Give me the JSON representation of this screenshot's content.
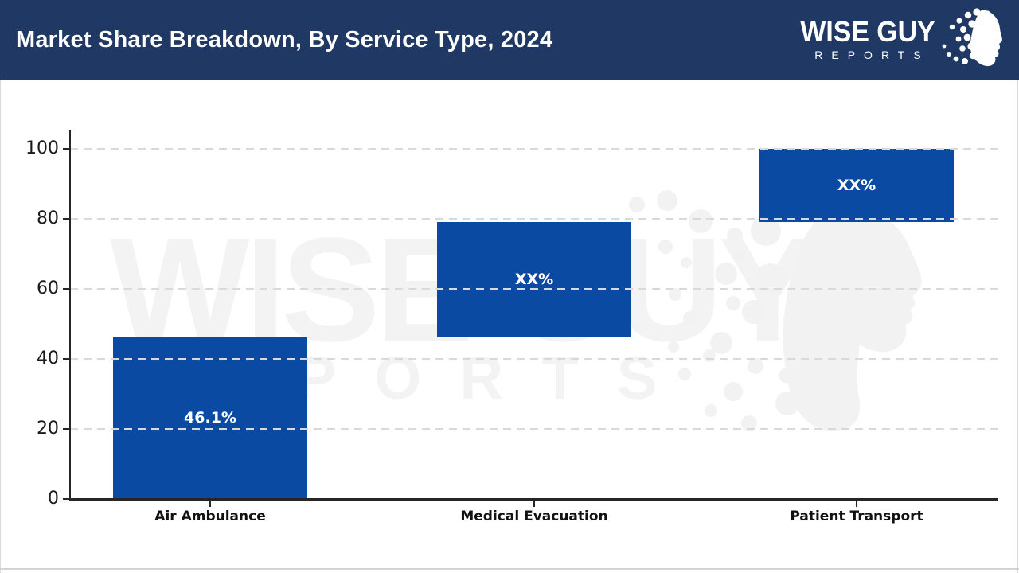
{
  "header": {
    "title": "Market Share Breakdown, By Service Type, 2024",
    "logo": {
      "brand": "WISE GUY",
      "sub": "REPORTS",
      "face_icon": "dotted-head-profile"
    }
  },
  "watermark": {
    "brand": "WISE GUY",
    "sub": "REPORTS",
    "face_icon": "dotted-head-profile"
  },
  "colors": {
    "header_bg": "#1f3864",
    "bar": "#0b4aa2",
    "grid": "#d9d9d9",
    "axis": "#262626",
    "tick_text": "#1a1a1a",
    "bar_label_text": "#ffffff",
    "watermark": "#f3f3f3"
  },
  "chart_data": {
    "type": "bar",
    "subtype": "stepped-waterfall",
    "title": "Market Share Breakdown, By Service Type, 2024",
    "categories": [
      "Air Ambulance",
      "Medical Evacuation",
      "Patient Transport"
    ],
    "segments": [
      {
        "category": "Air Ambulance",
        "start": 0,
        "end": 46.1,
        "label": "46.1%"
      },
      {
        "category": "Medical Evacuation",
        "start": 46.1,
        "end": 79.1,
        "label": "XX%"
      },
      {
        "category": "Patient Transport",
        "start": 79.1,
        "end": 100,
        "label": "XX%"
      }
    ],
    "ylim": [
      0,
      100
    ],
    "yticks": [
      0,
      20,
      40,
      60,
      80,
      100
    ],
    "xlabel": "",
    "ylabel": "",
    "grid": "horizontal-dashed",
    "legend": "none"
  }
}
